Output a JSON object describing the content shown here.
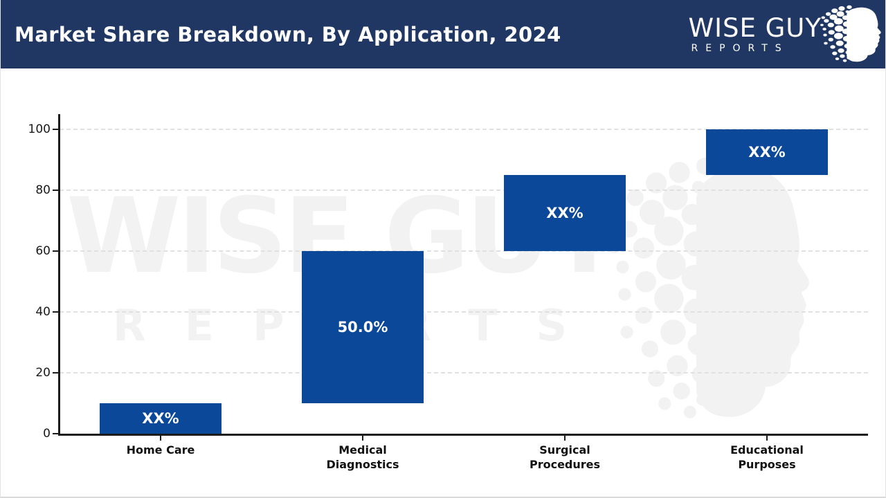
{
  "header": {
    "title": "Market Share Breakdown, By Application, 2024",
    "logo": {
      "wordmark": "WISE GUY",
      "subtext": "REPORTS"
    }
  },
  "watermark": {
    "line1": "WISE GUY",
    "line2": "REPORTS"
  },
  "chart_data": {
    "type": "bar",
    "subtype": "waterfall-floating-bars",
    "title": "Market Share Breakdown, By Application, 2024",
    "categories": [
      "Home Care",
      "Medical Diagnostics",
      "Surgical Procedures",
      "Educational Purposes"
    ],
    "category_lines": [
      [
        "Home Care"
      ],
      [
        "Medical",
        "Diagnostics"
      ],
      [
        "Surgical",
        "Procedures"
      ],
      [
        "Educational",
        "Purposes"
      ]
    ],
    "bars": [
      {
        "category": "Home Care",
        "start": 0,
        "end": 10,
        "value_label": "XX%"
      },
      {
        "category": "Medical Diagnostics",
        "start": 10,
        "end": 60,
        "value_label": "50.0%"
      },
      {
        "category": "Surgical Procedures",
        "start": 60,
        "end": 85,
        "value_label": "XX%"
      },
      {
        "category": "Educational Purposes",
        "start": 85,
        "end": 100,
        "value_label": "XX%"
      }
    ],
    "xlabel": "",
    "ylabel": "",
    "ylim": [
      0,
      100
    ],
    "y_ticks": [
      0,
      20,
      40,
      60,
      80,
      100
    ],
    "grid": "horizontal-dashed",
    "legend": "none"
  },
  "colors": {
    "header_bg": "#213763",
    "bar_fill": "#0B4899",
    "bar_label": "#FFFFFF",
    "grid_line": "#E0E0E0",
    "axis_line": "#1C1C1C",
    "tick_label": "#1A1A1A",
    "watermark": "#F2F2F2",
    "page_bg": "#FFFFFF"
  }
}
